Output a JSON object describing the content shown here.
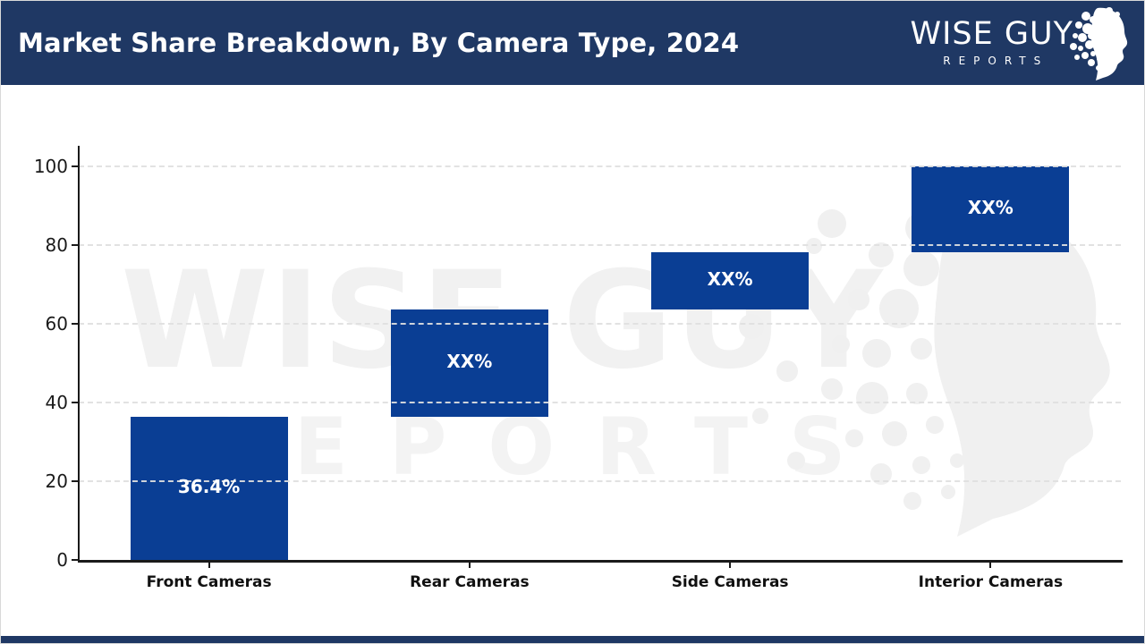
{
  "header": {
    "title": "Market Share Breakdown, By Camera Type, 2024",
    "background": "#1F3864",
    "logo": {
      "line1": "WISE GUY",
      "line2": "REPORTS"
    }
  },
  "watermark": {
    "line1": "WISE GUY",
    "line2": "REPORTS"
  },
  "chart_data": {
    "type": "bar",
    "subtype": "waterfall",
    "title": "Market Share Breakdown, By Camera Type, 2024",
    "categories": [
      "Front Cameras",
      "Rear Cameras",
      "Side Cameras",
      "Interior Cameras"
    ],
    "segments": [
      {
        "category": "Front Cameras",
        "start": 0,
        "end": 36.4,
        "label": "36.4%"
      },
      {
        "category": "Rear Cameras",
        "start": 36.4,
        "end": 63.6,
        "label": "XX%"
      },
      {
        "category": "Side Cameras",
        "start": 63.6,
        "end": 78.2,
        "label": "XX%"
      },
      {
        "category": "Interior Cameras",
        "start": 78.2,
        "end": 100,
        "label": "XX%"
      }
    ],
    "y_ticks": [
      0,
      20,
      40,
      60,
      80,
      100
    ],
    "ylim": [
      0,
      104.8
    ],
    "grid": "horizontal-dashed",
    "bar_color": "#0A3E94",
    "label_color": "#ffffff",
    "axis_color": "#1a1a1a",
    "grid_color": "#dfdfdf"
  },
  "footer": {
    "background": "#1F3864"
  }
}
